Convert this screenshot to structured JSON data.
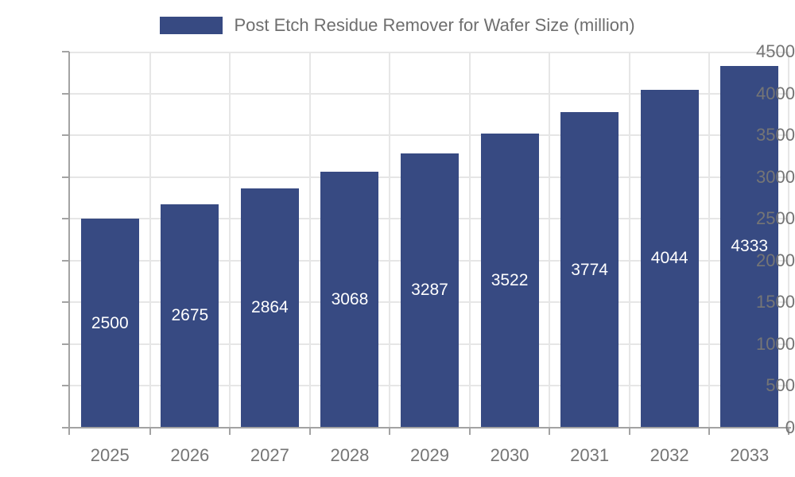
{
  "chart_data": {
    "type": "bar",
    "title": "Post Etch Residue Remover for Wafer Size (million)",
    "legend": {
      "entries": [
        "Post Etch Residue Remover for Wafer Size (million)"
      ],
      "position": "top-center"
    },
    "categories": [
      "2025",
      "2026",
      "2027",
      "2028",
      "2029",
      "2030",
      "2031",
      "2032",
      "2033"
    ],
    "values": [
      2500,
      2675,
      2864,
      3068,
      3287,
      3522,
      3774,
      4044,
      4333
    ],
    "xlabel": "",
    "ylabel": "",
    "ylim": [
      0,
      4500
    ],
    "ytick_step": 500,
    "yticks": [
      0,
      500,
      1000,
      1500,
      2000,
      2500,
      3000,
      3500,
      4000,
      4500
    ],
    "grid": true,
    "colors": {
      "bar": "#374A82",
      "value_label": "#FFFFFF",
      "axis_text": "#757575",
      "legend_text": "#6E6E6E",
      "gridline": "#E6E6E6",
      "axis_line": "#A3A3A3",
      "background": "#FFFFFF"
    }
  }
}
